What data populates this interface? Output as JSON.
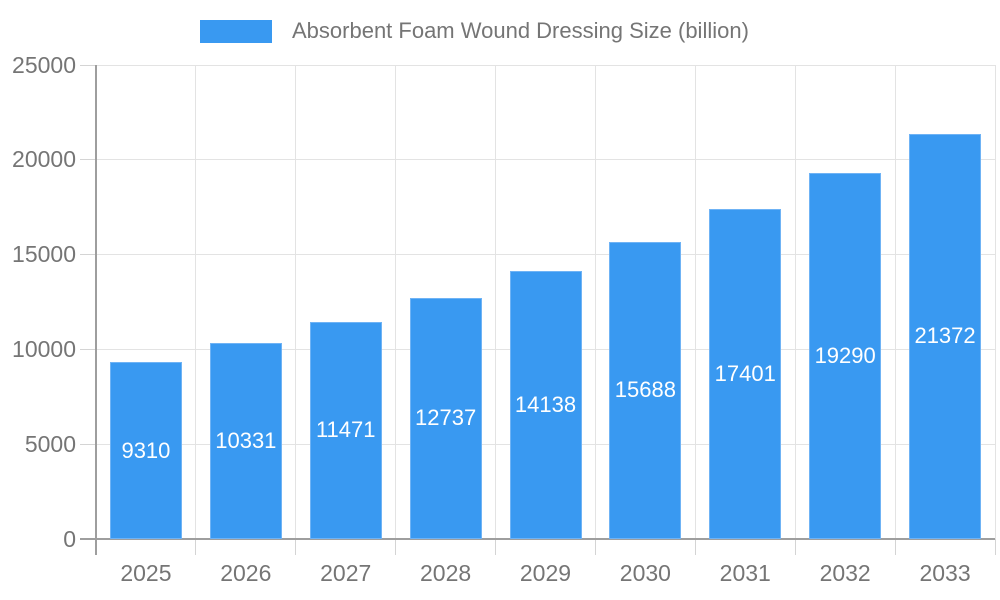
{
  "chart_data": {
    "type": "bar",
    "title": "",
    "legend": [
      "Absorbent Foam Wound Dressing Size (billion)"
    ],
    "categories": [
      "2025",
      "2026",
      "2027",
      "2028",
      "2029",
      "2030",
      "2031",
      "2032",
      "2033"
    ],
    "series": [
      {
        "name": "Absorbent Foam Wound Dressing Size (billion)",
        "values": [
          9310,
          10331,
          11471,
          12737,
          14138,
          15688,
          17401,
          19290,
          21372
        ]
      }
    ],
    "value_labels": [
      "9310",
      "10331",
      "11471",
      "12737",
      "14138",
      "15688",
      "17401",
      "19290",
      "21372"
    ],
    "xlabel": "",
    "ylabel": "",
    "ylim": [
      0,
      25000
    ],
    "yticks": [
      0,
      5000,
      10000,
      15000,
      20000,
      25000
    ],
    "ytick_labels": [
      "0",
      "5000",
      "10000",
      "15000",
      "20000",
      "25000"
    ],
    "grid": true,
    "legend_position": "top",
    "colors": {
      "bar_fill": "#3999F1",
      "bar_border": "#6FB3F5",
      "value_label": "#ffffff",
      "axis_line": "#9e9e9e",
      "gridline": "#e3e3e3",
      "tick": "#d4d4d4",
      "tick_label": "#757575",
      "legend_text": "#757575",
      "background": "#ffffff"
    }
  }
}
